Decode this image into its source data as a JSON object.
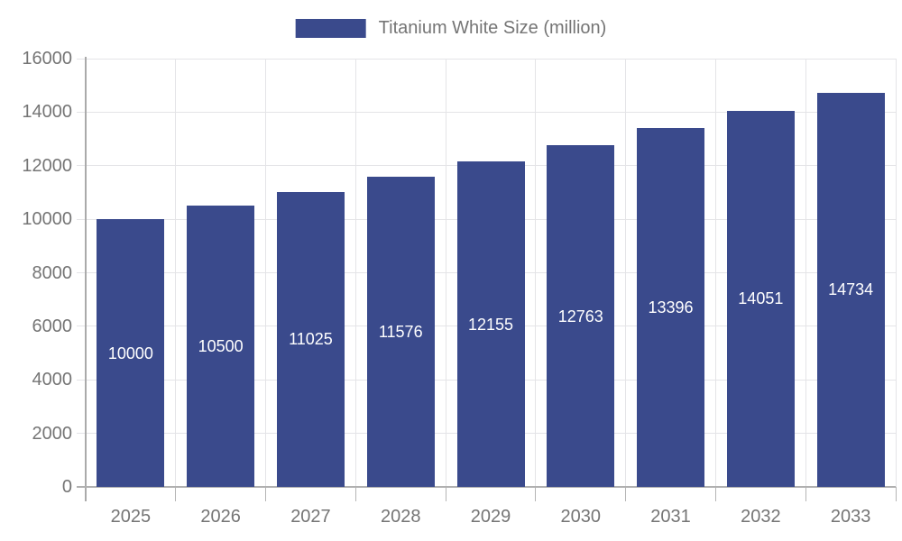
{
  "chart_data": {
    "type": "bar",
    "title": "",
    "legend": "Titanium White Size (million)",
    "legend_position": "top-center",
    "categories": [
      "2025",
      "2026",
      "2027",
      "2028",
      "2029",
      "2030",
      "2031",
      "2032",
      "2033"
    ],
    "series": [
      {
        "name": "Titanium White Size (million)",
        "values": [
          10000,
          10500,
          11025,
          11576,
          12155,
          12763,
          13396,
          14051,
          14734
        ]
      }
    ],
    "value_labels": [
      "10000",
      "10500",
      "11025",
      "11576",
      "12155",
      "12763",
      "13396",
      "14051",
      "14734"
    ],
    "xlabel": "",
    "ylabel": "",
    "ylim": [
      0,
      16000
    ],
    "ytick_step": 2000,
    "ytick_labels": [
      "0",
      "2000",
      "4000",
      "6000",
      "8000",
      "10000",
      "12000",
      "14000",
      "16000"
    ],
    "grid": true,
    "colors": {
      "bar": "#3A4A8C",
      "value_label_text": "#ffffff",
      "axis_text": "#757575",
      "legend_text": "#757575",
      "gridline": "#e4e4e7",
      "axis_line": "#aaaaaa",
      "baseline": "#b0b0b0",
      "tick": "#b5b5b5",
      "background": "#ffffff"
    }
  }
}
